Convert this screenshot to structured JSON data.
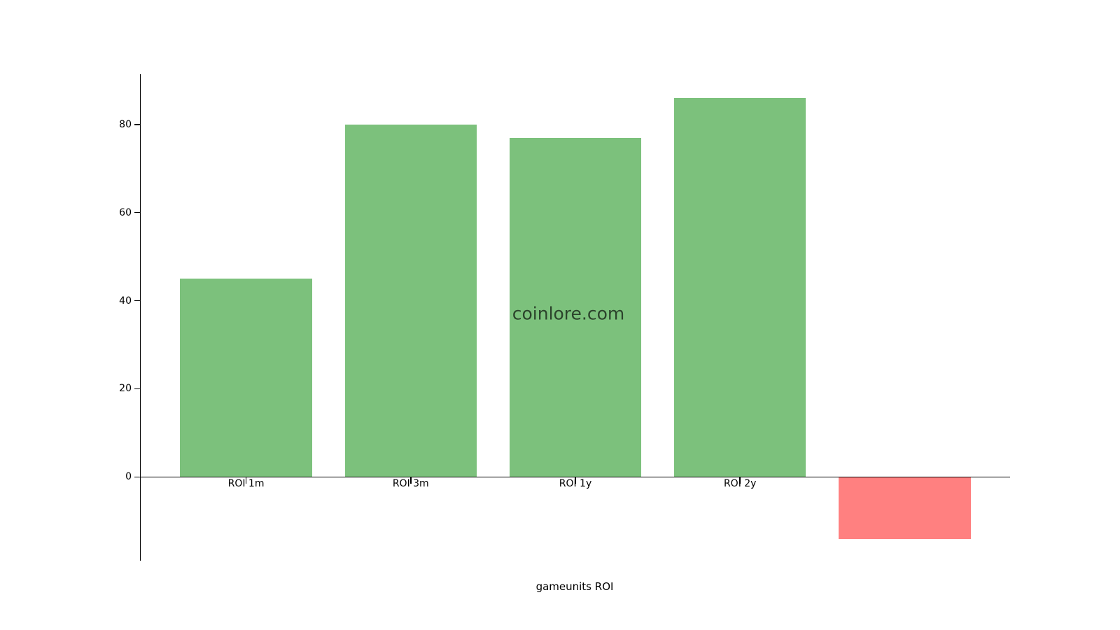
{
  "figure": {
    "background": "#ffffff"
  },
  "watermark": {
    "text": "coinlore.com",
    "color": "rgba(0,0,0,0.65)"
  },
  "chart_data": {
    "type": "bar",
    "title": "",
    "xlabel": "gameunits ROI",
    "ylabel": "",
    "categories": [
      "ROI 1m",
      "ROI 3m",
      "ROI 1y",
      "ROI 2y",
      ""
    ],
    "values": [
      45,
      80,
      77,
      86,
      -14
    ],
    "positive_color": "#7cc17c",
    "negative_color": "#ff8080",
    "yticks": [
      0,
      20,
      40,
      60,
      80
    ],
    "ylim": [
      -19,
      91.4
    ],
    "xlim": [
      -0.64,
      4.64
    ],
    "bar_width_fraction": 0.8,
    "grid": false,
    "legend": "none",
    "axis_color": "#000000",
    "tick_label_color": "#000000"
  }
}
